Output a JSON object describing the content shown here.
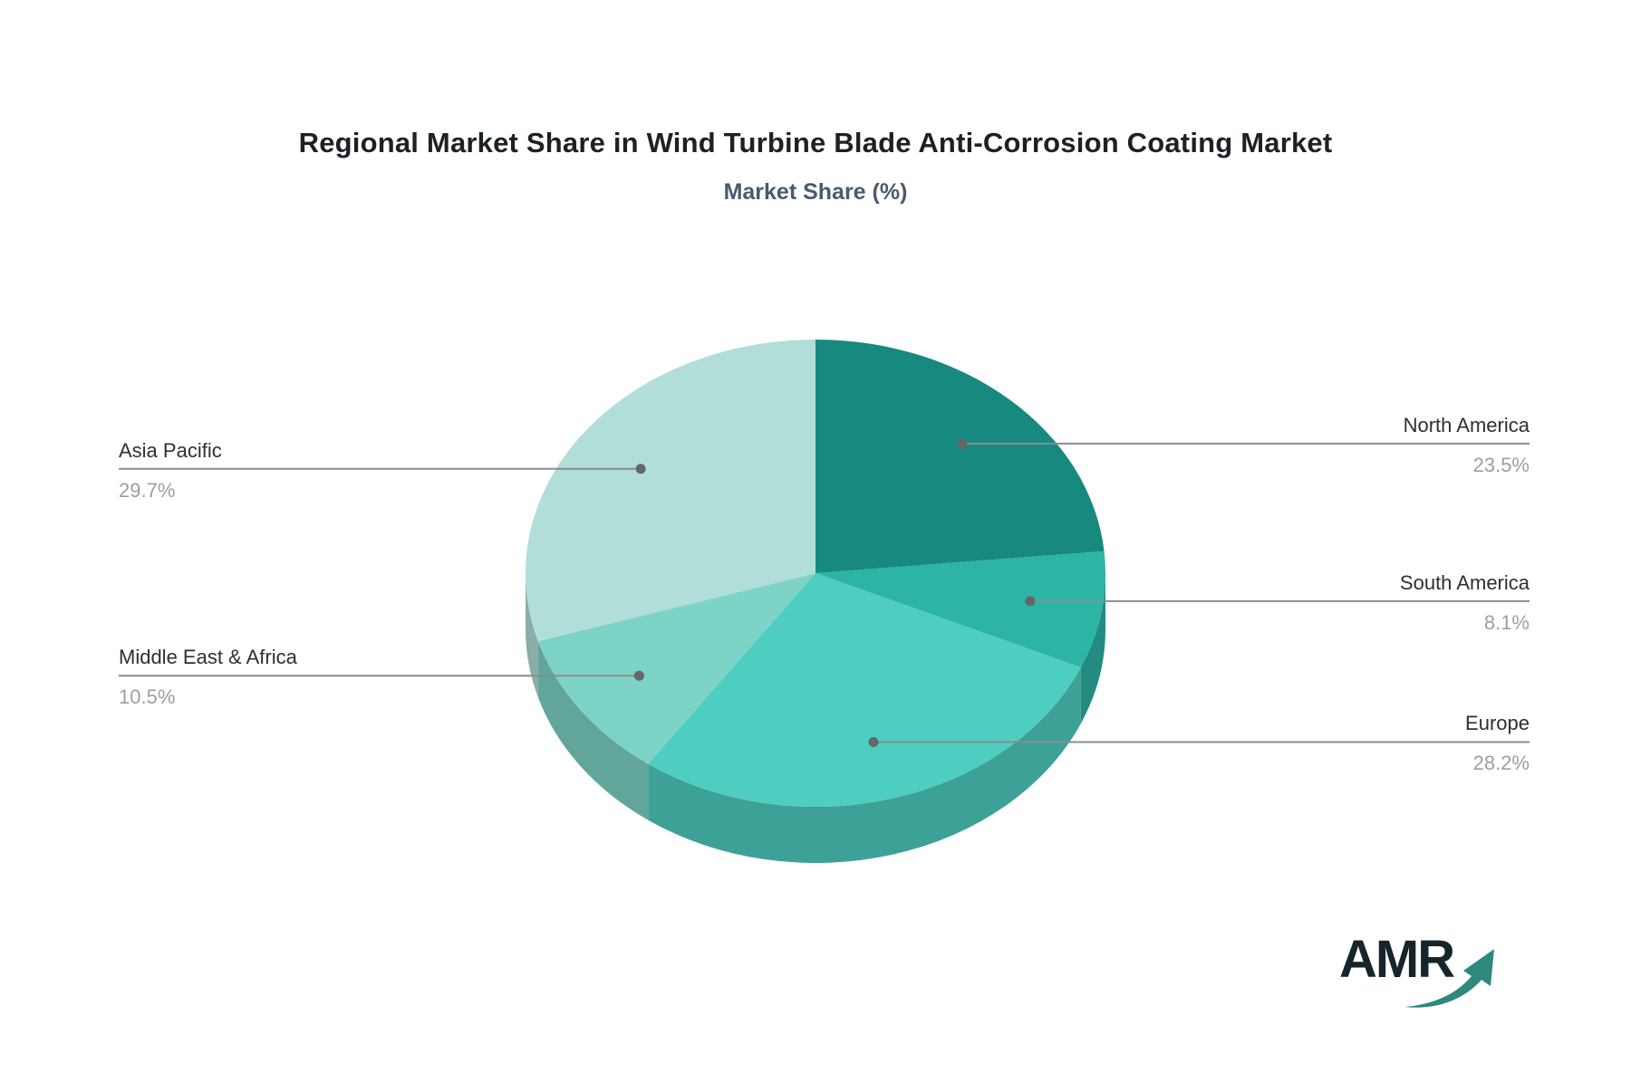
{
  "header": {
    "title": "Regional Market Share in Wind Turbine Blade Anti-Corrosion Coating Market",
    "subtitle": "Market Share (%)"
  },
  "chart_data": {
    "type": "pie",
    "style": "3d",
    "title": "Regional Market Share in Wind Turbine Blade Anti-Corrosion Coating Market",
    "subtitle": "Market Share (%)",
    "unit": "%",
    "start_angle": "top",
    "direction": "clockwise",
    "legend_position": "callout-labels",
    "slices": [
      {
        "label": "North America",
        "value": 23.5,
        "display": "23.5%",
        "color": "#18897f",
        "side": "right"
      },
      {
        "label": "South America",
        "value": 8.1,
        "display": "8.1%",
        "color": "#2cb4a5",
        "side": "right"
      },
      {
        "label": "Europe",
        "value": 28.2,
        "display": "28.2%",
        "color": "#4ecec1",
        "side": "right"
      },
      {
        "label": "Middle East & Africa",
        "value": 10.5,
        "display": "10.5%",
        "color": "#7ed3c7",
        "side": "left"
      },
      {
        "label": "Asia Pacific",
        "value": 29.7,
        "display": "29.7%",
        "color": "#b1ded8",
        "side": "left"
      }
    ]
  },
  "branding": {
    "logo_text": "AMR",
    "logo_text_color": "#16242b",
    "logo_arrow_color": "#2f877d"
  },
  "colors": {
    "title": "#1c2126",
    "subtitle": "#4a5a6e",
    "label_text": "#2f2f2f",
    "percent_text": "#9e9e9e",
    "connector_line": "#8c8c8c",
    "connector_dot": "#666666",
    "background": "#ffffff"
  }
}
